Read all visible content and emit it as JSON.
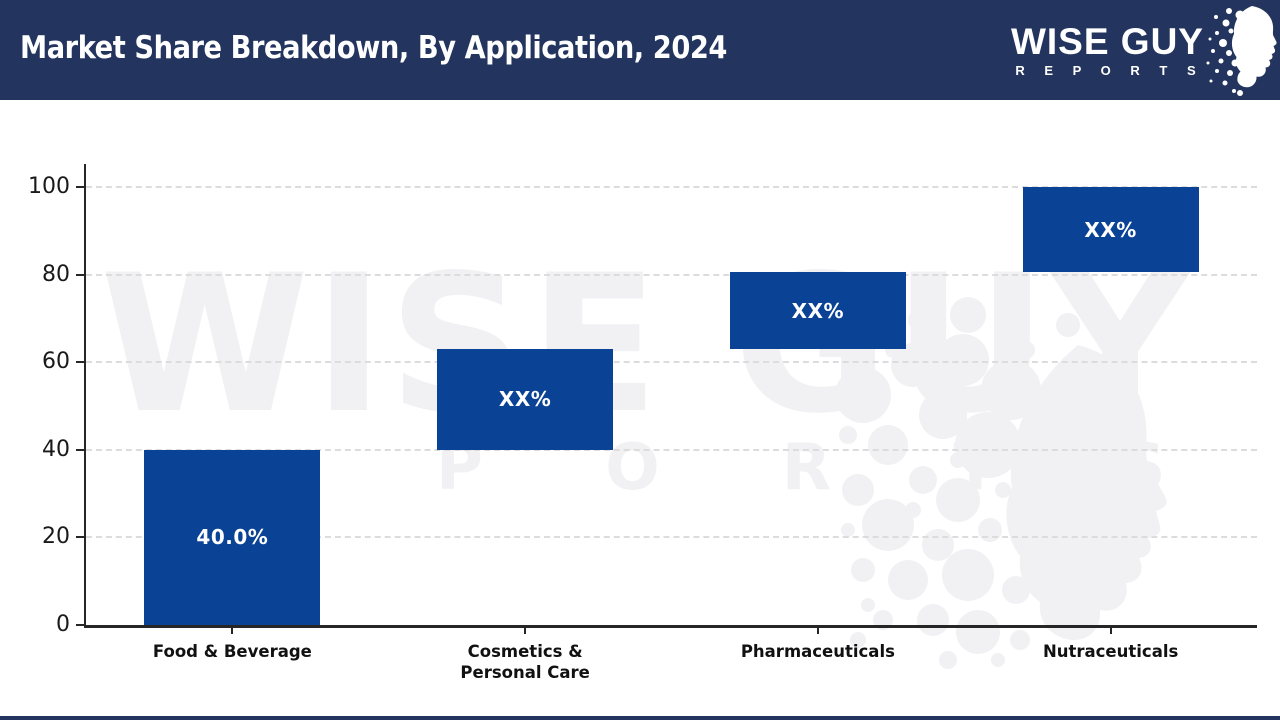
{
  "header": {
    "title": "Market Share Breakdown, By Application, 2024",
    "logo": {
      "wordmark": "WISE GUY",
      "subtext": "R E P O R T S"
    }
  },
  "watermark": {
    "wordmark": "WISE GUY",
    "subtext": "P O R T S"
  },
  "chart_data": {
    "type": "bar",
    "subtype": "waterfall",
    "title": "Market Share Breakdown, By Application, 2024",
    "categories": [
      "Food & Beverage",
      "Cosmetics &\nPersonal Care",
      "Pharmaceuticals",
      "Nutraceuticals"
    ],
    "segments": [
      {
        "category": "Food & Beverage",
        "label": "40.0%",
        "start": 0,
        "end": 40
      },
      {
        "category": "Cosmetics & Personal Care",
        "label": "XX%",
        "start": 40,
        "end": 63
      },
      {
        "category": "Pharmaceuticals",
        "label": "XX%",
        "start": 63,
        "end": 80.5
      },
      {
        "category": "Nutraceuticals",
        "label": "XX%",
        "start": 80.5,
        "end": 100
      }
    ],
    "yticks": [
      0,
      20,
      40,
      60,
      80,
      100
    ],
    "ylim": [
      0,
      105
    ],
    "xlabel": "",
    "ylabel": "",
    "grid": "horizontal-dashed",
    "legend": "none"
  },
  "colors": {
    "header_bg": "#23355e",
    "bar": "#0a4296",
    "bar_label": "#ffffff",
    "axis": "#262626",
    "grid": "#dcdcdc",
    "watermark": "#f1f1f4",
    "title_text": "#ffffff"
  }
}
